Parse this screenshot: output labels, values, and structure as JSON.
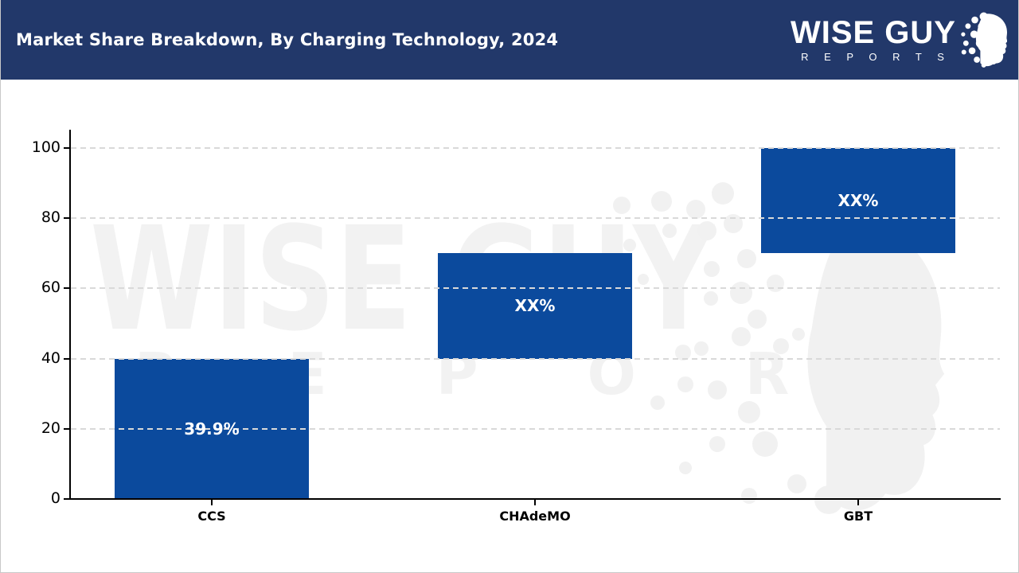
{
  "colors": {
    "header_bg": "#22386a",
    "bar": "#0b4a9d",
    "grid": "#d9d9d9",
    "axis": "#000000",
    "bar_label": "#ffffff",
    "watermark": "#f2f2f2"
  },
  "header": {
    "title": "Market Share Breakdown, By Charging Technology, 2024",
    "logo": {
      "wordmark": "WISE GUY",
      "subtext": "R E P O R T S"
    }
  },
  "watermark": {
    "wordmark": "WISE GUY",
    "subtext": "R E P O R T S"
  },
  "chart_data": {
    "type": "bar",
    "variant": "floating-waterfall",
    "title": "Market Share Breakdown, By Charging Technology, 2024",
    "categories": [
      "CCS",
      "CHAdeMO",
      "GBT"
    ],
    "series": [
      {
        "name": "Market share (%)",
        "segments": [
          {
            "category": "CCS",
            "start": 0,
            "end": 39.9,
            "label": "39.9%"
          },
          {
            "category": "CHAdeMO",
            "start": 40,
            "end": 70,
            "label": "XX%"
          },
          {
            "category": "GBT",
            "start": 70,
            "end": 100,
            "label": "XX%"
          }
        ]
      }
    ],
    "xlabel": "",
    "ylabel": "",
    "ylim": [
      0,
      105
    ],
    "yticks": [
      0,
      20,
      40,
      60,
      80,
      100
    ],
    "grid": "horizontal dashed, drawn above bars",
    "legend": "none"
  }
}
